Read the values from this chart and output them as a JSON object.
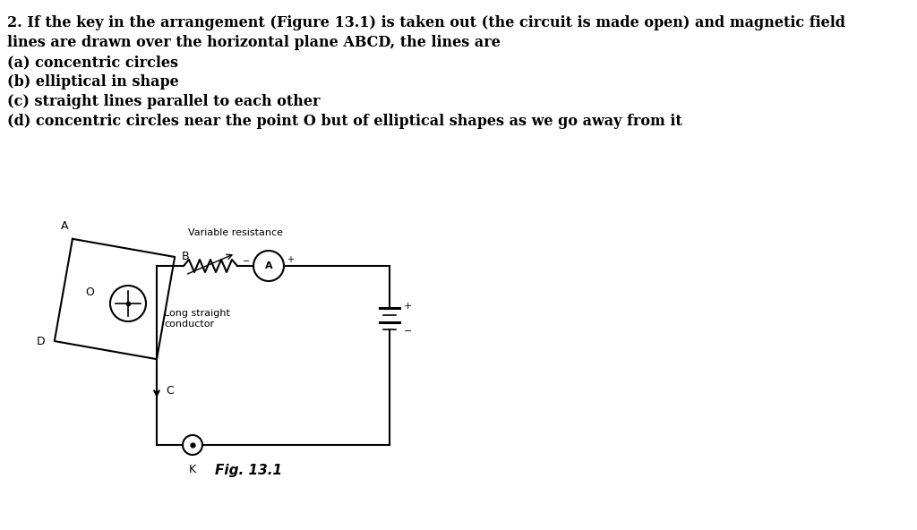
{
  "background_color": "#ffffff",
  "text_color": "#000000",
  "line1": "2. If the key in the arrangement (Figure 13.1) is taken out (the circuit is made open) and magnetic field",
  "line2": "lines are drawn over the horizontal plane ABCD, the lines are",
  "line3": "(a) concentric circles",
  "line4": "(b) elliptical in shape",
  "line5": "(c) straight lines parallel to each other",
  "line6": "(d) concentric circles near the point O but of elliptical shapes as we go away from it",
  "fig_caption": "Fig. 13.1"
}
